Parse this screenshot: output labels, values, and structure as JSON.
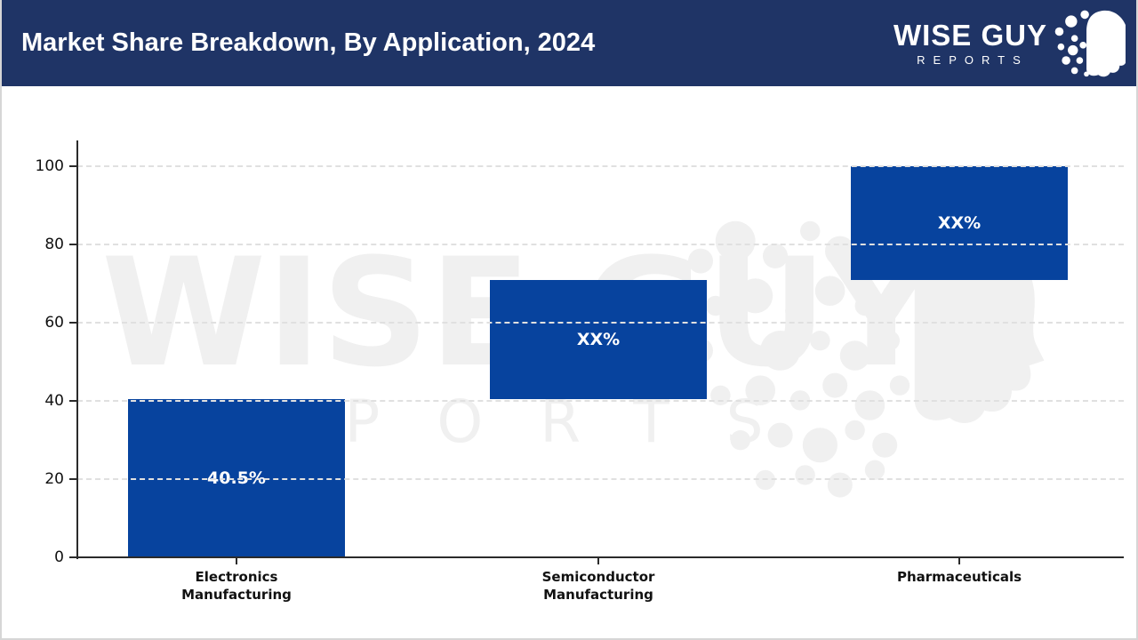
{
  "header": {
    "title": "Market Share Breakdown, By Application, 2024",
    "logo": {
      "line1": "WISE GUY",
      "line2": "REPORTS"
    }
  },
  "watermark": {
    "line1": "WISE GUY",
    "line2": "REPORTS"
  },
  "colors": {
    "header_bg": "#1f3466",
    "bar": "#07439e",
    "axis": "#2b2b2b",
    "grid": "#e0e0e0",
    "watermark": "#f0f0f0",
    "bar_label": "#ffffff"
  },
  "chart_data": {
    "type": "bar",
    "variant": "floating-waterfall",
    "title": "Market Share Breakdown, By Application, 2024",
    "categories": [
      [
        "Electronics",
        "Manufacturing"
      ],
      [
        "Semiconductor",
        "Manufacturing"
      ],
      [
        "Pharmaceuticals"
      ]
    ],
    "segments": [
      {
        "name": "Electronics Manufacturing",
        "start": 0,
        "end": 40.5,
        "label": "40.5%"
      },
      {
        "name": "Semiconductor Manufacturing",
        "start": 40.5,
        "end": 71,
        "label": "XX%"
      },
      {
        "name": "Pharmaceuticals",
        "start": 71,
        "end": 100,
        "label": "XX%"
      }
    ],
    "yticks": [
      0,
      20,
      40,
      60,
      80,
      100
    ],
    "ylim": [
      0,
      106
    ],
    "xlabel": "",
    "ylabel": "",
    "grid": {
      "horizontal": true,
      "style": "dashed",
      "above_bars": true
    },
    "legend": "none",
    "bar_color": "#07439e",
    "bar_label_color": "#ffffff"
  }
}
